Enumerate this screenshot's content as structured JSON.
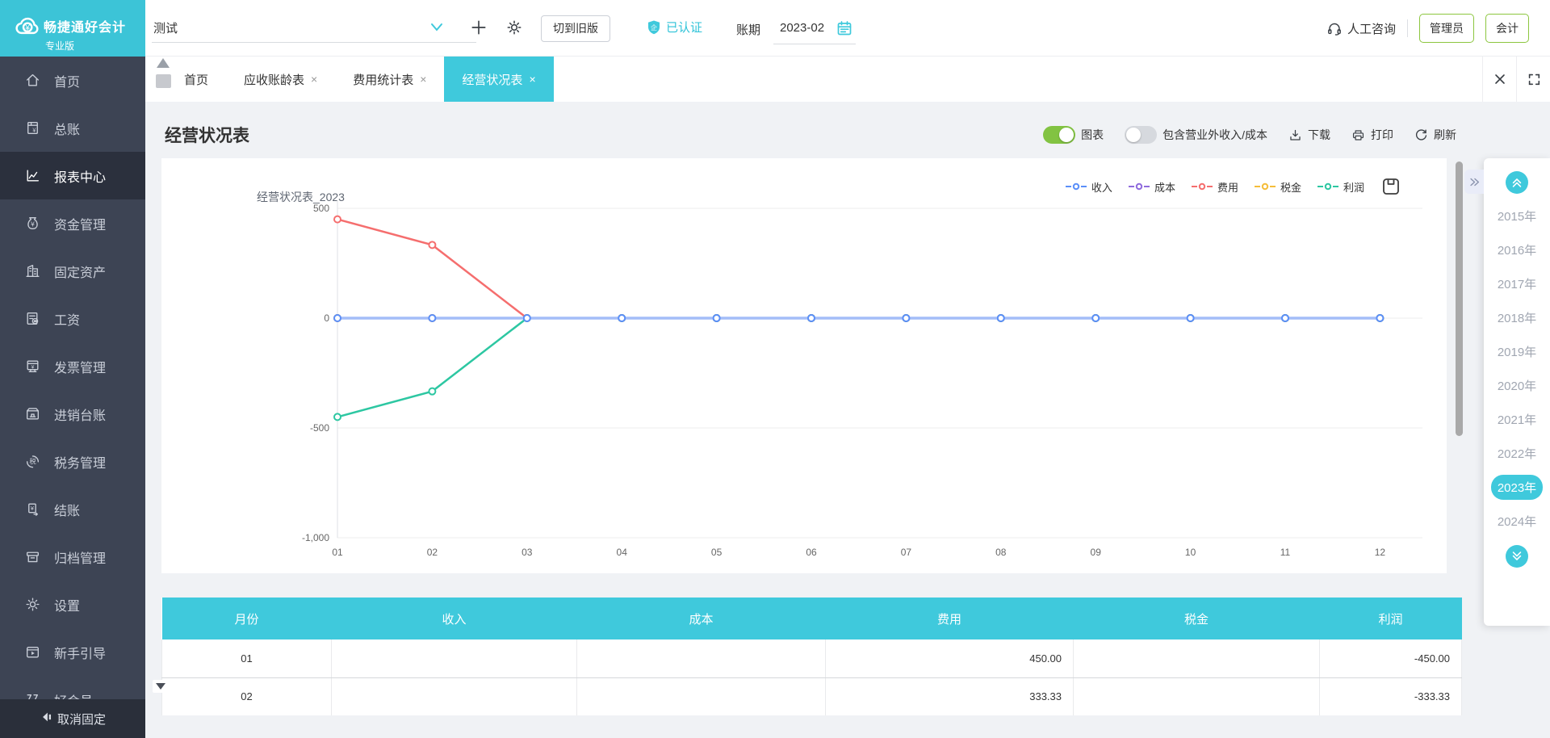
{
  "app": {
    "logo_title": "畅捷通好会计",
    "logo_subtitle": "专业版",
    "logo_badge": "¥",
    "account_name": "测试",
    "switch_old_button": "切到旧版",
    "certified_shield_char": "企",
    "certified_badge": "已认证",
    "period_label": "账期",
    "period_value": "2023-02",
    "support_label": "人工咨询",
    "admin_button": "管理员",
    "accountant_button": "会计"
  },
  "sidebar": {
    "items": [
      {
        "label": "首页",
        "icon": "home-icon",
        "active": false
      },
      {
        "label": "总账",
        "icon": "ledger-icon",
        "active": false
      },
      {
        "label": "报表中心",
        "icon": "report-center-icon",
        "active": true
      },
      {
        "label": "资金管理",
        "icon": "funds-icon",
        "active": false
      },
      {
        "label": "固定资产",
        "icon": "fixed-assets-icon",
        "active": false
      },
      {
        "label": "工资",
        "icon": "salary-icon",
        "active": false
      },
      {
        "label": "发票管理",
        "icon": "invoice-icon",
        "active": false
      },
      {
        "label": "进销台账",
        "icon": "inventory-icon",
        "active": false
      },
      {
        "label": "税务管理",
        "icon": "tax-icon",
        "active": false
      },
      {
        "label": "结账",
        "icon": "closing-icon",
        "active": false
      },
      {
        "label": "归档管理",
        "icon": "archive-icon",
        "active": false
      },
      {
        "label": "设置",
        "icon": "settings-icon",
        "active": false
      },
      {
        "label": "新手引导",
        "icon": "guide-icon",
        "active": false
      },
      {
        "label": "好会员",
        "icon": "member-icon",
        "active": false
      }
    ],
    "unpin_label": "取消固定"
  },
  "tabs": [
    {
      "label": "首页",
      "closable": false,
      "active": false
    },
    {
      "label": "应收账龄表",
      "closable": true,
      "active": false
    },
    {
      "label": "费用统计表",
      "closable": true,
      "active": false
    },
    {
      "label": "经营状况表",
      "closable": true,
      "active": true
    }
  ],
  "toolbar": {
    "page_title": "经营状况表",
    "chart_toggle_label": "图表",
    "chart_toggle_on": true,
    "include_toggle_label": "包含营业外收入/成本",
    "include_toggle_on": false,
    "download_label": "下载",
    "print_label": "打印",
    "refresh_label": "刷新"
  },
  "chart_data": {
    "type": "line",
    "title": "经营状况表_2023",
    "categories": [
      "01",
      "02",
      "03",
      "04",
      "05",
      "06",
      "07",
      "08",
      "09",
      "10",
      "11",
      "12"
    ],
    "yticks": [
      500,
      0,
      -500,
      -1000
    ],
    "ytick_labels": [
      "500",
      "0",
      "-500",
      "-1,000"
    ],
    "ylim": [
      -1000,
      500
    ],
    "grid": true,
    "legend_position": "top-right",
    "series": [
      {
        "name": "收入",
        "color": "#5b8ff9",
        "line_color": "#a4bdf8",
        "line_width": 3.5,
        "z": 5,
        "values": [
          0,
          0,
          0,
          0,
          0,
          0,
          0,
          0,
          0,
          0,
          0,
          0
        ]
      },
      {
        "name": "成本",
        "color": "#8f6bdd",
        "line_color": "#8f6bdd",
        "line_width": 2.5,
        "z": 1,
        "values": [
          0,
          0,
          0,
          0,
          0,
          0,
          0,
          0,
          0,
          0,
          0,
          0
        ]
      },
      {
        "name": "费用",
        "color": "#f56e6e",
        "line_color": "#f56e6e",
        "line_width": 2.5,
        "z": 3,
        "values": [
          450,
          333.33,
          0,
          0,
          0,
          0,
          0,
          0,
          0,
          0,
          0,
          0
        ]
      },
      {
        "name": "税金",
        "color": "#f5bd3a",
        "line_color": "#f5bd3a",
        "line_width": 2.5,
        "z": 2,
        "values": [
          0,
          0,
          0,
          0,
          0,
          0,
          0,
          0,
          0,
          0,
          0,
          0
        ]
      },
      {
        "name": "利润",
        "color": "#2dc7a2",
        "line_color": "#2dc7a2",
        "line_width": 2.5,
        "z": 4,
        "values": [
          -450,
          -333.33,
          0,
          0,
          0,
          0,
          0,
          0,
          0,
          0,
          0,
          0
        ]
      }
    ]
  },
  "table": {
    "columns": [
      "月份",
      "收入",
      "成本",
      "费用",
      "税金",
      "利润"
    ],
    "rows": [
      [
        "01",
        "",
        "",
        "450.00",
        "",
        "-450.00"
      ],
      [
        "02",
        "",
        "",
        "333.33",
        "",
        "-333.33"
      ]
    ]
  },
  "year_panel": {
    "years": [
      "2015年",
      "2016年",
      "2017年",
      "2018年",
      "2019年",
      "2020年",
      "2021年",
      "2022年",
      "2023年",
      "2024年"
    ],
    "selected": "2023年"
  },
  "colors": {
    "primary": "#3fc9dc",
    "toggle_on": "#82c342",
    "green_button_border": "#8cc63f",
    "sidebar_bg": "#3d4454",
    "sidebar_active_bg": "#2b303d"
  }
}
